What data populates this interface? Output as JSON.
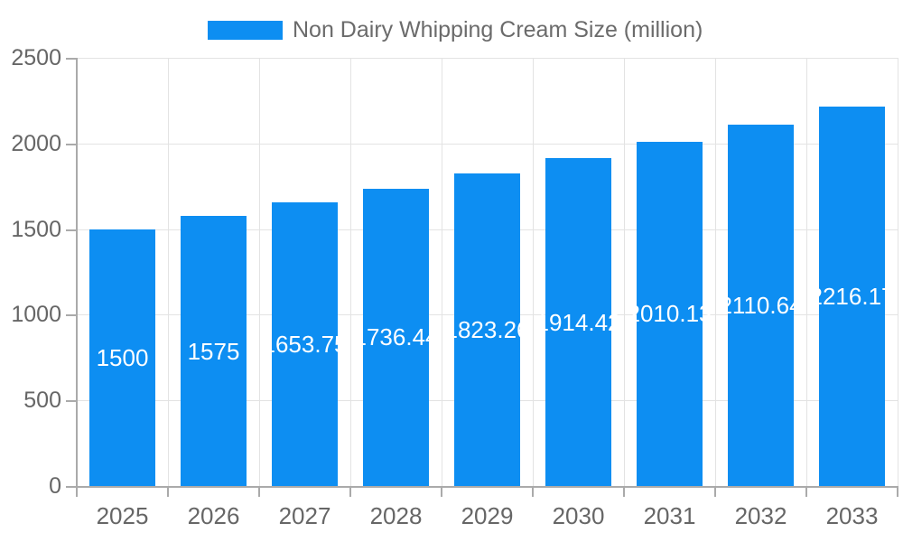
{
  "legend": {
    "label": "Non Dairy Whipping Cream Size (million)"
  },
  "chart_data": {
    "type": "bar",
    "title": "Non Dairy Whipping Cream Size (million)",
    "categories": [
      "2025",
      "2026",
      "2027",
      "2028",
      "2029",
      "2030",
      "2031",
      "2032",
      "2033"
    ],
    "values": [
      1500,
      1575,
      1653.75,
      1736.44,
      1823.26,
      1914.42,
      2010.13,
      2110.64,
      2216.17
    ],
    "value_labels": [
      "1500",
      "1575",
      "1653.75",
      "1736.44",
      "1823.26",
      "1914.42",
      "2010.13",
      "2110.64",
      "2216.17"
    ],
    "xlabel": "",
    "ylabel": "",
    "ylim": [
      0,
      2500
    ],
    "yticks": [
      0,
      500,
      1000,
      1500,
      2000,
      2500
    ],
    "grid": true,
    "legend_position": "top",
    "colors": {
      "bar": "#0d8ef2",
      "grid": "#e3e3e3",
      "axis": "#aaaaaa",
      "tick_label": "#666666",
      "legend_text": "#6b6b6b",
      "value_label": "#ffffff",
      "background": "#ffffff"
    }
  }
}
